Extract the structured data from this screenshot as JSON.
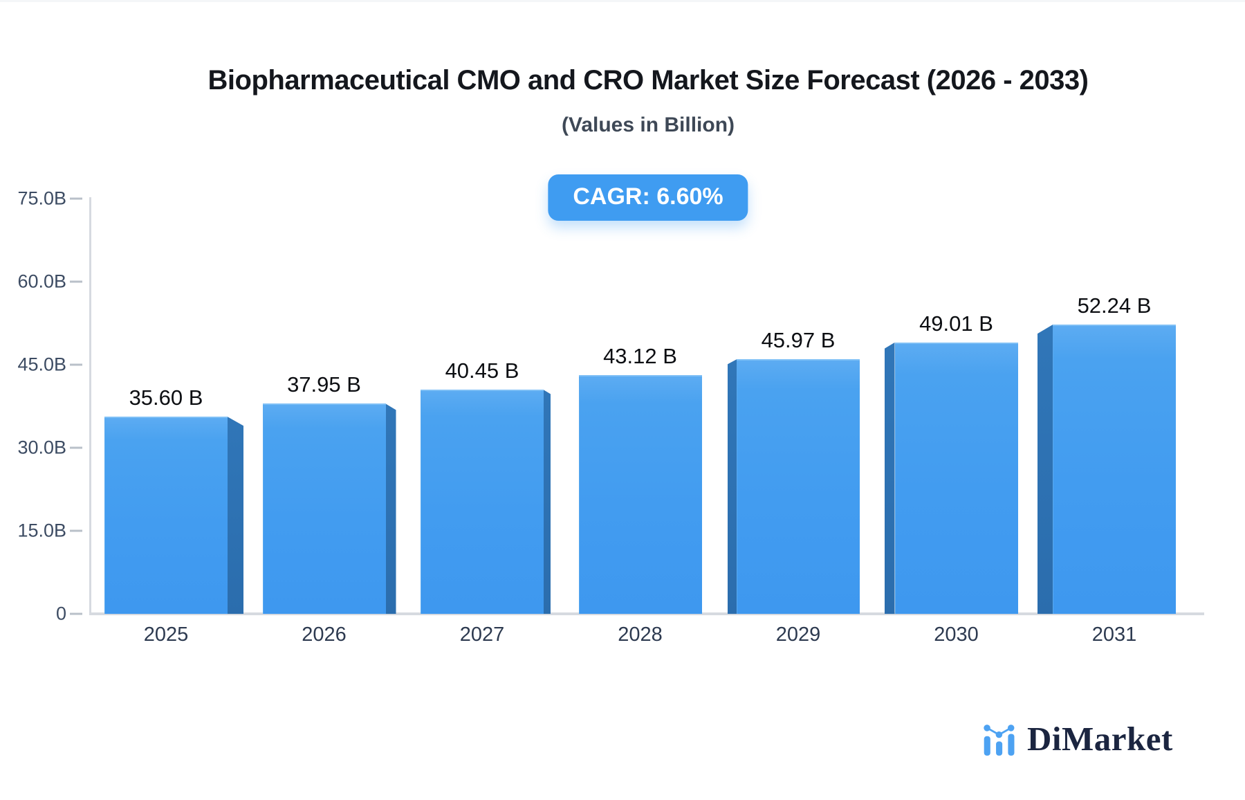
{
  "header": {
    "title": "Biopharmaceutical CMO and CRO Market Size Forecast (2026 - 2033)",
    "subtitle": "(Values in Billion)",
    "cagr_label": "CAGR: 6.60%"
  },
  "chart_data": {
    "type": "bar",
    "title": "Biopharmaceutical CMO and CRO Market Size Forecast (2026 - 2033)",
    "subtitle": "(Values in Billion)",
    "cagr": "6.60%",
    "categories": [
      "2025",
      "2026",
      "2027",
      "2028",
      "2029",
      "2030",
      "2031"
    ],
    "values": [
      35.6,
      37.95,
      40.45,
      43.12,
      45.97,
      49.01,
      52.24
    ],
    "value_labels": [
      "35.60 B",
      "37.95 B",
      "40.45 B",
      "43.12 B",
      "45.97 B",
      "49.01 B",
      "52.24 B"
    ],
    "unit": "Billion",
    "xlabel": "",
    "ylabel": "",
    "ylim": [
      0,
      75
    ],
    "yticks": [
      {
        "label": "75.0B",
        "value": 75
      },
      {
        "label": "60.0B",
        "value": 60
      },
      {
        "label": "45.0B",
        "value": 45
      },
      {
        "label": "30.0B",
        "value": 30
      },
      {
        "label": "15.0B",
        "value": 15
      },
      {
        "label": "0",
        "value": 0
      }
    ],
    "grid": false,
    "legend": false,
    "style": "3d-bars",
    "bar_color": "#429cf0",
    "bar_side_color": "#2d70b2"
  },
  "footer": {
    "brand": "DiMarket",
    "logo_icon": "bar-line-chart-icon",
    "logo_color": "#4da2f2"
  },
  "colors": {
    "badge_bg": "#3f9cf1",
    "axis_line": "#d6dae0",
    "tick_text": "#3d4c63",
    "category_text": "#2d3a50",
    "value_text": "#0c0e12"
  }
}
